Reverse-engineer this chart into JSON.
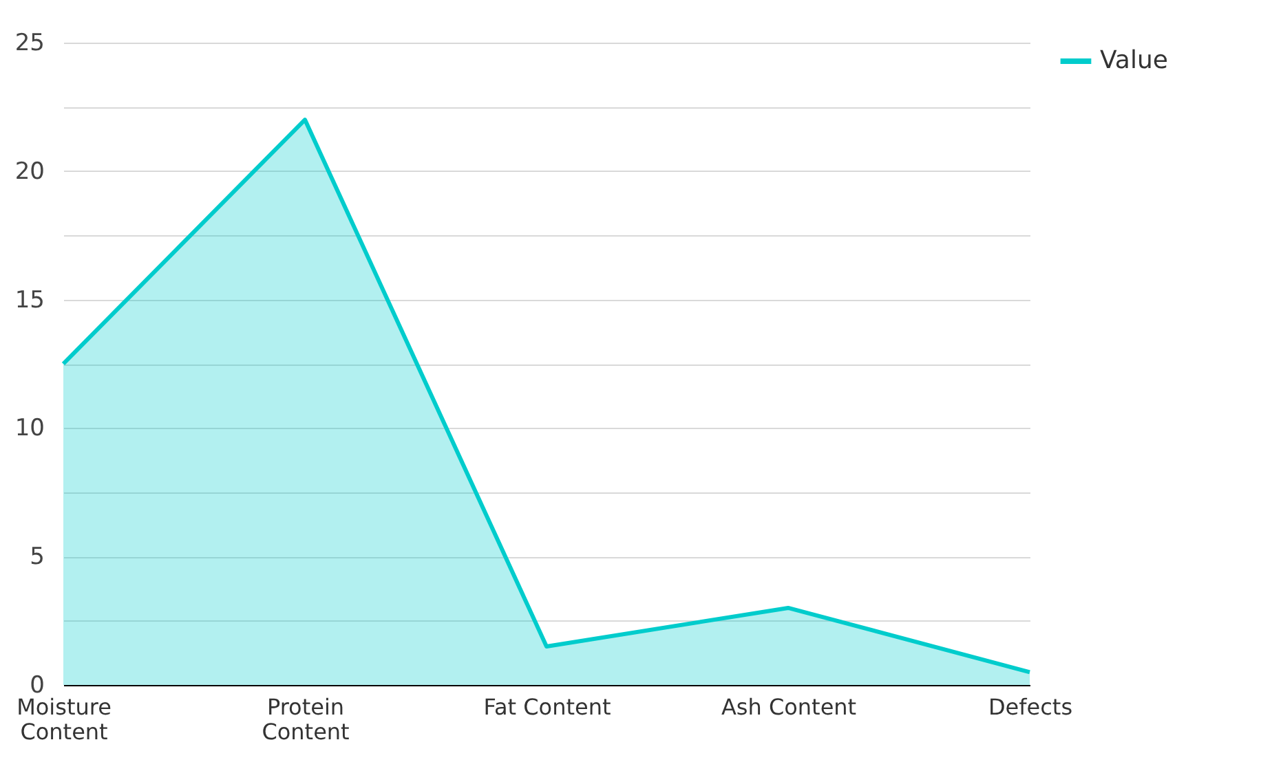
{
  "chart_data": {
    "type": "area",
    "categories": [
      "Moisture Content",
      "Protein Content",
      "Fat Content",
      "Ash Content",
      "Defects"
    ],
    "series": [
      {
        "name": "Value",
        "color": "#00cccc",
        "values": [
          12.5,
          22,
          1.5,
          3,
          0.5
        ]
      }
    ],
    "ylim": [
      0,
      25
    ],
    "yticks": [
      0,
      {
        "value": 2.5,
        "label": null
      },
      5,
      {
        "value": 7.5,
        "label": null
      },
      10,
      {
        "value": 12.5,
        "label": null
      },
      15,
      {
        "value": 17.5,
        "label": null
      },
      20,
      {
        "value": 22.5,
        "label": null
      },
      25
    ],
    "grid": "y",
    "legend": "top right"
  }
}
